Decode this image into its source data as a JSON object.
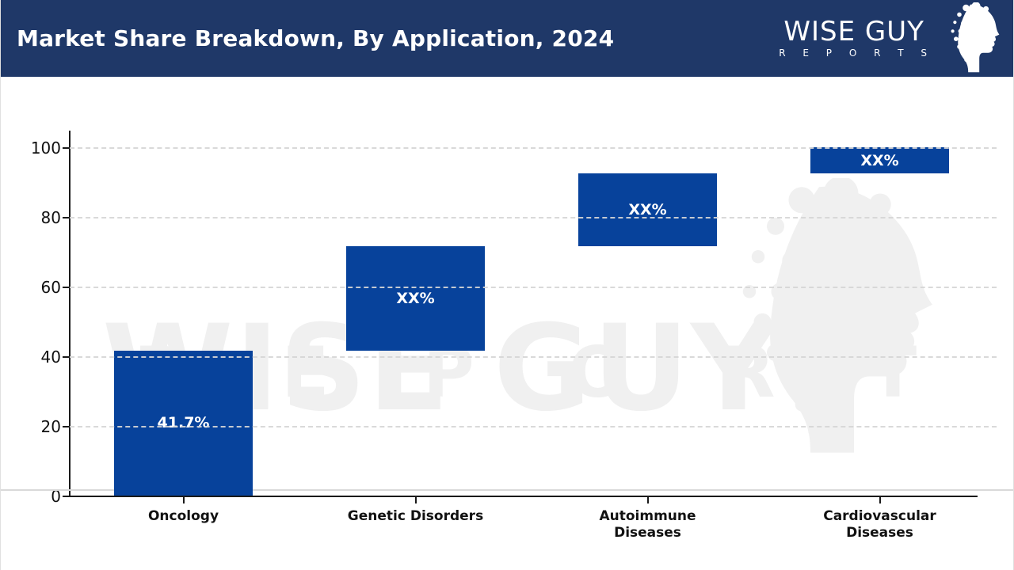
{
  "header": {
    "title": "Market Share Breakdown, By Application, 2024",
    "logo": {
      "name": "WISE GUY",
      "sub": "R E P O R T S"
    }
  },
  "watermark": {
    "line1": "WISE GUY",
    "line2": "R E P O R T S"
  },
  "colors": {
    "header_bg": "#1F3868",
    "bar_fill": "#07429B",
    "grid_line": "#D6D6D6",
    "axis_line": "#1A1A1A",
    "bar_label_text": "#FFFFFF"
  },
  "chart_data": {
    "type": "bar",
    "subtype": "waterfall",
    "title": "Market Share Breakdown, By Application, 2024",
    "xlabel": "",
    "ylabel": "",
    "ylim": [
      0,
      100
    ],
    "yticks": [
      0,
      20,
      40,
      60,
      80,
      100
    ],
    "grid": "horizontal-dashed",
    "legend": "none",
    "bar_color": "#07429B",
    "categories": [
      "Oncology",
      "Genetic Disorders",
      "Autoimmune Diseases",
      "Cardiovascular Diseases"
    ],
    "bars": [
      {
        "category_lines": [
          "Oncology"
        ],
        "start": 0,
        "end": 41.7,
        "label": "41.7%"
      },
      {
        "category_lines": [
          "Genetic Disorders"
        ],
        "start": 41.7,
        "end": 71.7,
        "label": "XX%"
      },
      {
        "category_lines": [
          "Autoimmune",
          "Diseases"
        ],
        "start": 71.7,
        "end": 92.4,
        "label": "XX%"
      },
      {
        "category_lines": [
          "Cardiovascular",
          "Diseases"
        ],
        "start": 92.4,
        "end": 100,
        "label": "XX%"
      }
    ]
  }
}
